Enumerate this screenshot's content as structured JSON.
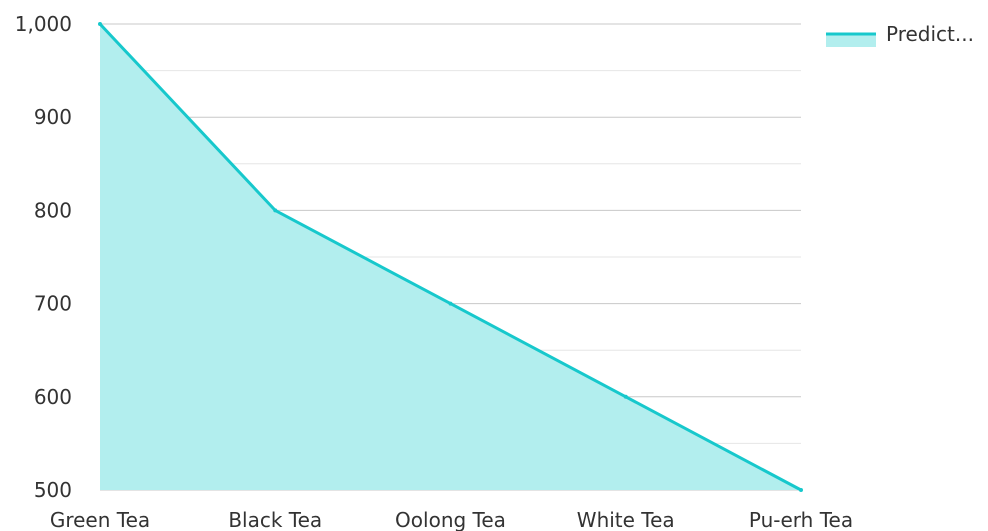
{
  "chart_data": {
    "type": "area",
    "categories": [
      "Green Tea",
      "Black Tea",
      "Oolong Tea",
      "White Tea",
      "Pu-erh Tea"
    ],
    "series": [
      {
        "name": "Predict...",
        "values": [
          1000,
          800,
          700,
          600,
          500
        ]
      }
    ],
    "ylim": [
      500,
      1000
    ],
    "yticks": [
      500,
      600,
      700,
      800,
      900,
      1000
    ],
    "ytick_labels": [
      "500",
      "600",
      "700",
      "800",
      "900",
      "1,000"
    ],
    "grid": true,
    "legend": {
      "placement": "top-right",
      "label": "Predict..."
    },
    "colors": {
      "line": "#17c8cc",
      "fill": "#b2eeee",
      "grid_major": "#c8c8c8",
      "grid_minor": "#e6e6e6"
    }
  }
}
